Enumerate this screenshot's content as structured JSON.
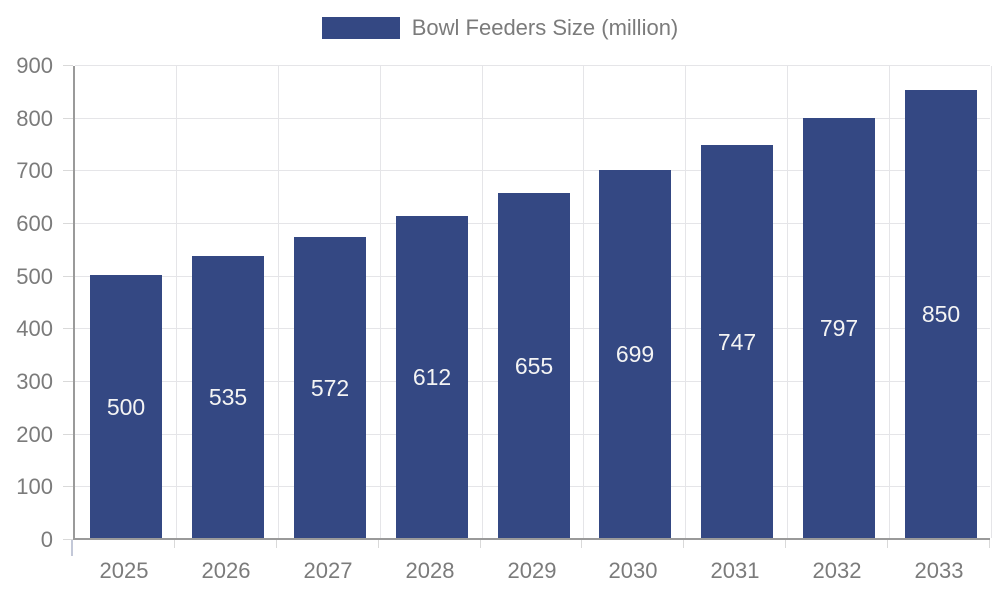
{
  "legend": {
    "label": "Bowl Feeders Size (million)"
  },
  "chart_data": {
    "type": "bar",
    "title": "Bowl Feeders Size (million)",
    "series_name": "Bowl Feeders Size (million)",
    "categories": [
      "2025",
      "2026",
      "2027",
      "2028",
      "2029",
      "2030",
      "2031",
      "2032",
      "2033"
    ],
    "values": [
      500,
      535,
      572,
      612,
      655,
      699,
      747,
      797,
      850
    ],
    "xlabel": "",
    "ylabel": "",
    "ylim": [
      0,
      900
    ],
    "yticks": [
      0,
      100,
      200,
      300,
      400,
      500,
      600,
      700,
      800,
      900
    ],
    "grid": true,
    "legend_position": "top",
    "value_label_position": "inside-center",
    "colors": {
      "bar": "#344883",
      "value_label": "#f4f4f4",
      "axis_text": "#7b7b7b",
      "grid_line": "#e5e5e8",
      "axis_line": "#9a9a9a",
      "background": "#ffffff"
    }
  }
}
